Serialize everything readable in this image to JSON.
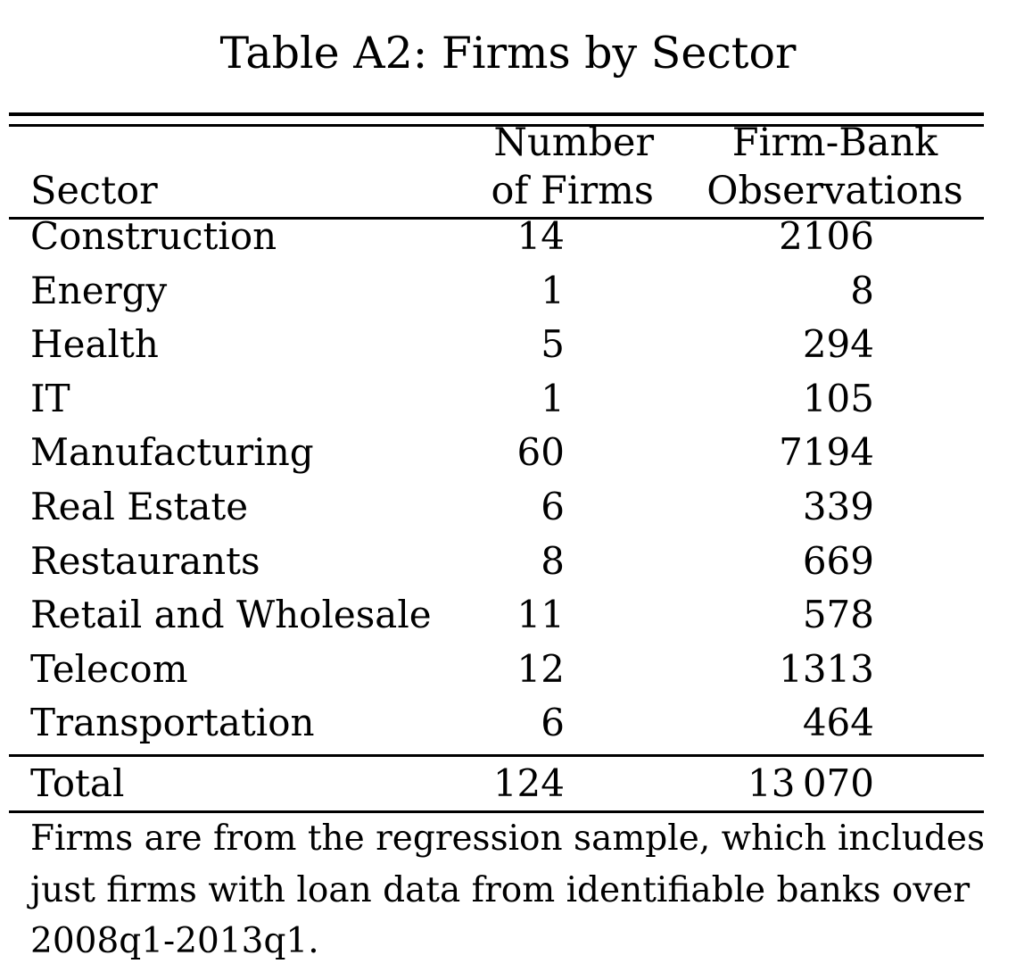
{
  "title": "Table A2: Firms by Sector",
  "table": {
    "headers": {
      "sector": "Sector",
      "firms_line1": "Number",
      "firms_line2": "of Firms",
      "obs_line1": "Firm-Bank",
      "obs_line2": "Observations"
    },
    "rows": [
      {
        "sector": "Construction",
        "firms": "14",
        "obs": "2106"
      },
      {
        "sector": "Energy",
        "firms": "1",
        "obs": "8"
      },
      {
        "sector": "Health",
        "firms": "5",
        "obs": "294"
      },
      {
        "sector": "IT",
        "firms": "1",
        "obs": "105"
      },
      {
        "sector": "Manufacturing",
        "firms": "60",
        "obs": "7194"
      },
      {
        "sector": "Real Estate",
        "firms": "6",
        "obs": "339"
      },
      {
        "sector": "Restaurants",
        "firms": "8",
        "obs": "669"
      },
      {
        "sector": "Retail and Wholesale",
        "firms": "11",
        "obs": "578"
      },
      {
        "sector": "Telecom",
        "firms": "12",
        "obs": "1313"
      },
      {
        "sector": "Transportation",
        "firms": "6",
        "obs": "464"
      }
    ],
    "total": {
      "label": "Total",
      "firms": "124",
      "obs": "13 070"
    }
  },
  "footnote": {
    "lines": [
      "Firms are from the regression sample, which includes",
      "just firms with loan data from identifiable banks over",
      "2008q1-2013q1."
    ]
  },
  "colors": {
    "text": "#000000",
    "background": "#ffffff",
    "rule": "#000000"
  }
}
